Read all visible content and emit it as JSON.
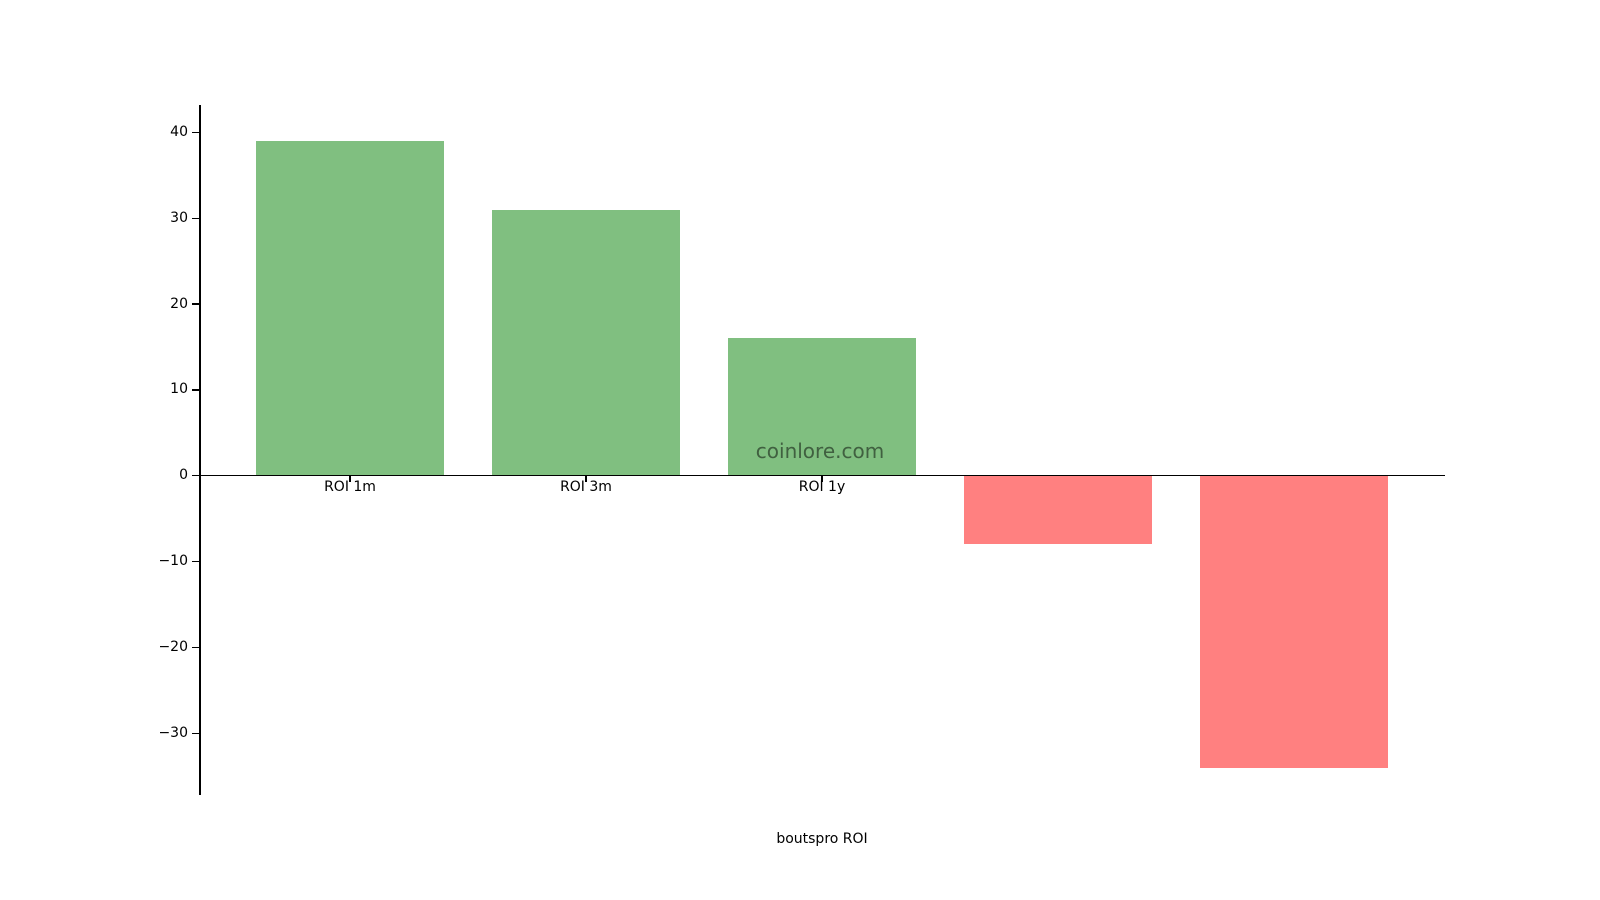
{
  "chart": {
    "watermark": "coinlore.com",
    "xlabel": "boutspro ROI",
    "colors": {
      "positive_bar": "#80bf80",
      "negative_bar": "#ff8080",
      "axis": "#000000",
      "tick_text": "#000000",
      "watermark_text": "#406040"
    }
  },
  "chart_data": {
    "type": "bar",
    "title": "",
    "xlabel": "boutspro ROI",
    "ylabel": "",
    "categories": [
      "ROI 1m",
      "ROI 3m",
      "ROI 1y",
      "",
      ""
    ],
    "values": [
      39,
      31,
      16,
      -8,
      -34
    ],
    "series": [
      {
        "name": "boutspro ROI",
        "values": [
          39,
          31,
          16,
          -8,
          -34
        ],
        "colors": [
          "positive",
          "positive",
          "positive",
          "negative",
          "negative"
        ]
      }
    ],
    "yticks": [
      40,
      30,
      20,
      10,
      0,
      -10,
      -20,
      -30
    ],
    "ylim": [
      -37.2,
      43.2
    ],
    "grid": false,
    "legend_position": "none",
    "annotations": [
      "coinlore.com"
    ],
    "notes": "x tick labels for the two negative bars are hidden behind the red bars"
  }
}
